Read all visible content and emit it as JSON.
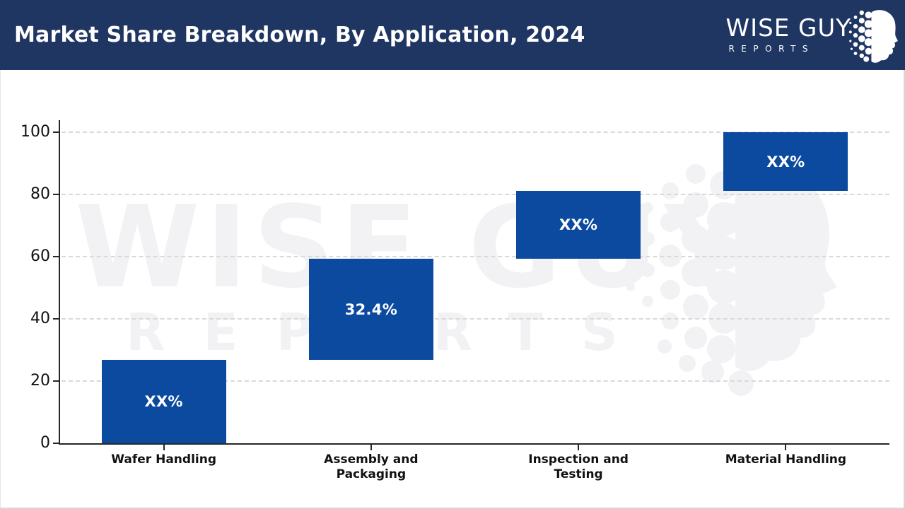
{
  "header": {
    "title": "Market Share Breakdown, By Application, 2024",
    "logo": {
      "wordmark": "WISE GUY",
      "subtext": "REPORTS"
    }
  },
  "watermark": {
    "wordmark": "WISE GUY",
    "subtext": "REPORTS"
  },
  "chart_data": {
    "type": "bar",
    "subtype": "waterfall",
    "title": "Market Share Breakdown, By Application, 2024",
    "xlabel": "",
    "ylabel": "",
    "ylim": [
      0,
      104
    ],
    "y_ticks": [
      0,
      20,
      40,
      60,
      80,
      100
    ],
    "grid": "horizontal-dashed",
    "legend": "none",
    "categories": [
      [
        "Wafer Handling"
      ],
      [
        "Assembly and",
        "Packaging"
      ],
      [
        "Inspection and",
        "Testing"
      ],
      [
        "Material Handling"
      ]
    ],
    "series": [
      {
        "name": "Wafer Handling",
        "start": 0,
        "end": 26.8,
        "value_label": "XX%"
      },
      {
        "name": "Assembly and Packaging",
        "start": 26.8,
        "end": 59.2,
        "value_label": "32.4%"
      },
      {
        "name": "Inspection and Testing",
        "start": 59.2,
        "end": 81.0,
        "value_label": "XX%"
      },
      {
        "name": "Material Handling",
        "start": 81.0,
        "end": 99.9,
        "value_label": "XX%"
      }
    ],
    "bar_color": "#0b4a9f",
    "value_label_color": "#ffffff"
  },
  "colors": {
    "header_bg": "#1f3562",
    "header_text": "#ffffff",
    "bar": "#0b4a9f",
    "axis": "#262626",
    "tick_label": "#111111",
    "gridline": "#d9d9d9",
    "watermark": "#f2f2f4",
    "page_bg": "#ffffff"
  }
}
